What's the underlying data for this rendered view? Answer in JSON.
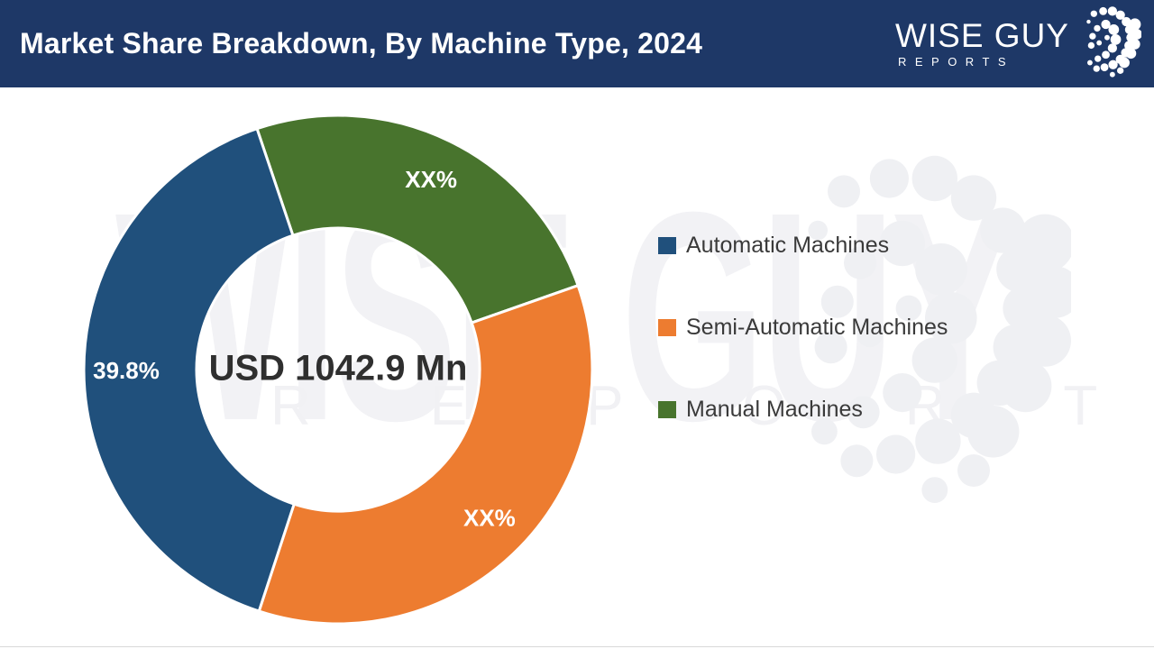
{
  "header": {
    "title": "Market Share Breakdown, By Machine Type, 2024",
    "logo": {
      "line1": "WISE GUY",
      "line2": "REPORTS"
    }
  },
  "watermark": {
    "line1": "WISE GUY",
    "line2": "REPORTS"
  },
  "chart_data": {
    "type": "pie",
    "subtype": "donut",
    "title": "Market Share Breakdown, By Machine Type, 2024",
    "center_label": "USD 1042.9 Mn",
    "legend_position": "right",
    "start_angle_deg": 341.4,
    "series": [
      {
        "name": "Automatic Machines",
        "value": 39.8,
        "label": "39.8%",
        "color": "#20507c"
      },
      {
        "name": "Semi-Automatic Machines",
        "value": 35.4,
        "label": "XX%",
        "color": "#ed7c30"
      },
      {
        "name": "Manual Machines",
        "value": 24.8,
        "label": "XX%",
        "color": "#48742d"
      }
    ]
  },
  "colors": {
    "header_bg": "#1e3867",
    "slice_border": "#ffffff",
    "center_text": "#2f2f2f",
    "legend_text": "#3a3a3a",
    "watermark": "#f2f2f5"
  }
}
